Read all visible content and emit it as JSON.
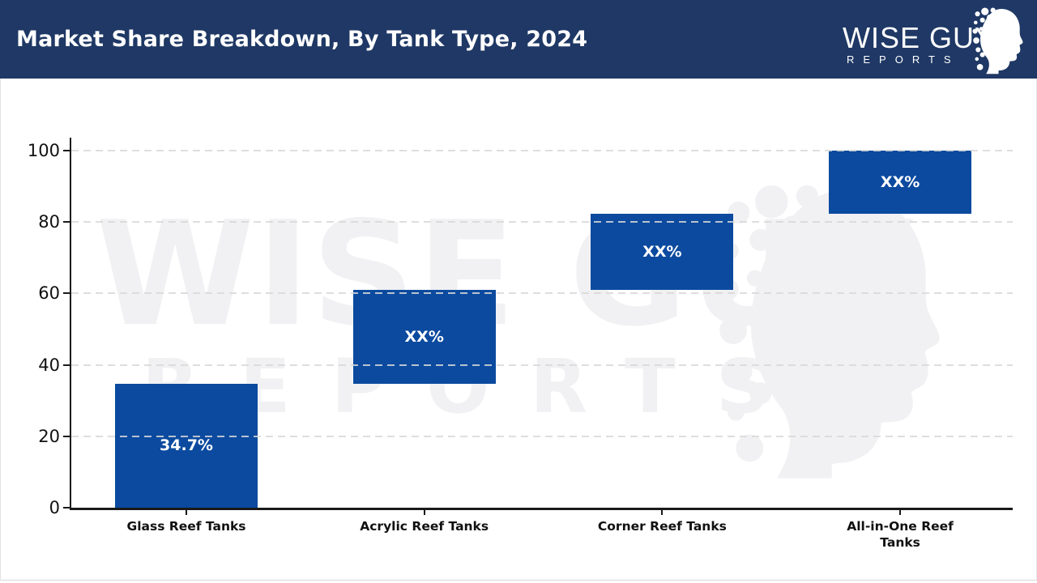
{
  "header": {
    "title": "Market Share Breakdown, By Tank Type, 2024",
    "logo": {
      "line1": "WISE GUY",
      "line2": "REPORTS"
    }
  },
  "watermark": {
    "line1": "WISE GUY",
    "line2": "REPORTS"
  },
  "colors": {
    "header_bg": "#1f3865",
    "bar": "#0b4a9f",
    "grid": "#d8d8d8",
    "watermark": "#f1f1f3",
    "axis": "#1a1a1a"
  },
  "chart_data": {
    "type": "bar",
    "subtype": "waterfall",
    "title": "Market Share Breakdown, By Tank Type, 2024",
    "categories": [
      "Glass Reef Tanks",
      "Acrylic Reef Tanks",
      "Corner Reef Tanks",
      "All-in-One Reef Tanks"
    ],
    "bars": [
      {
        "category": "Glass Reef Tanks",
        "start": 0,
        "end": 34.7,
        "label": "34.7%"
      },
      {
        "category": "Acrylic Reef Tanks",
        "start": 34.7,
        "end": 61.0,
        "label": "XX%"
      },
      {
        "category": "Corner Reef Tanks",
        "start": 61.0,
        "end": 82.3,
        "label": "XX%"
      },
      {
        "category": "All-in-One Reef Tanks",
        "start": 82.3,
        "end": 100.0,
        "label": "XX%"
      }
    ],
    "y_ticks": [
      0,
      20,
      40,
      60,
      80,
      100
    ],
    "ylim": [
      0,
      104
    ],
    "xlabel": "",
    "ylabel": "",
    "grid": "dashed-horizontal",
    "legend": "none"
  }
}
